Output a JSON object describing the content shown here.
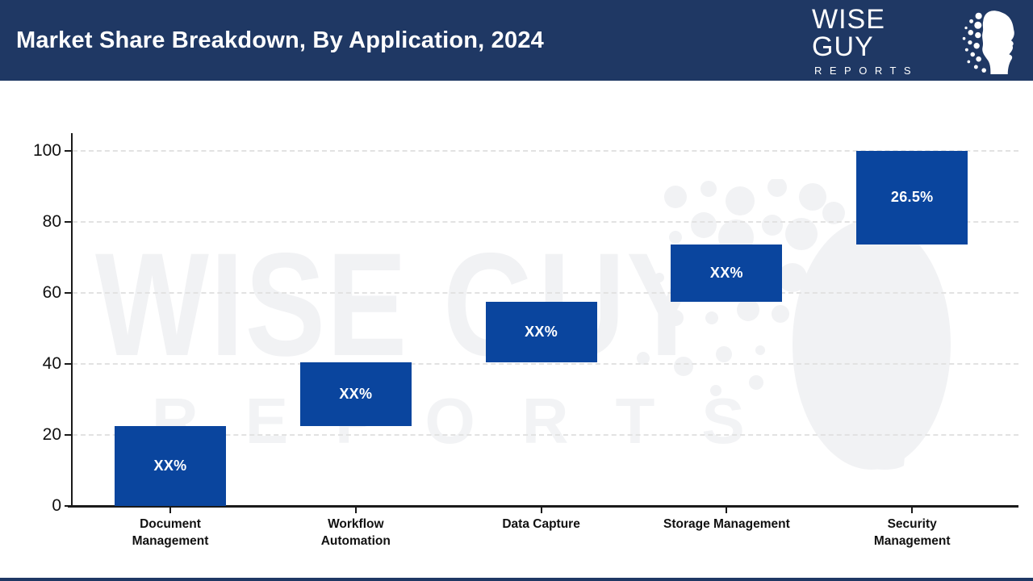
{
  "header": {
    "title": "Market Share Breakdown, By Application, 2024",
    "logo": {
      "line1": "WISE GUY",
      "line2": "REPORTS"
    }
  },
  "watermark": {
    "line1": "WISE GUY",
    "line2": "REPORTS"
  },
  "colors": {
    "header_bg": "#1f3864",
    "bar_blue": "#0a459e",
    "gridline": "#e2e2e2",
    "axis": "#1a1a1a",
    "watermark": "#f1f2f4"
  },
  "chart_data": {
    "type": "bar",
    "subtype": "waterfall",
    "title": "Market Share Breakdown, By Application, 2024",
    "categories": [
      "Document Management",
      "Workflow Automation",
      "Data Capture",
      "Storage Management",
      "Security Management"
    ],
    "category_label_lines": [
      [
        "Document",
        "Management"
      ],
      [
        "Workflow",
        "Automation"
      ],
      [
        "Data Capture"
      ],
      [
        "Storage Management"
      ],
      [
        "Security",
        "Management"
      ]
    ],
    "segments": [
      {
        "category": "Document Management",
        "start": 0,
        "end": 22.5,
        "label": "XX%"
      },
      {
        "category": "Workflow Automation",
        "start": 22.5,
        "end": 40.5,
        "label": "XX%"
      },
      {
        "category": "Data Capture",
        "start": 40.5,
        "end": 57.5,
        "label": "XX%"
      },
      {
        "category": "Storage Management",
        "start": 57.5,
        "end": 73.5,
        "label": "XX%"
      },
      {
        "category": "Security Management",
        "start": 73.5,
        "end": 100,
        "label": "26.5%"
      }
    ],
    "ylabel": "",
    "xlabel": "",
    "ylim": [
      0,
      100
    ],
    "yticks": [
      0,
      20,
      40,
      60,
      80,
      100
    ],
    "grid": "horizontal dashed",
    "legend": "none",
    "bar_color": "#0a459e"
  }
}
